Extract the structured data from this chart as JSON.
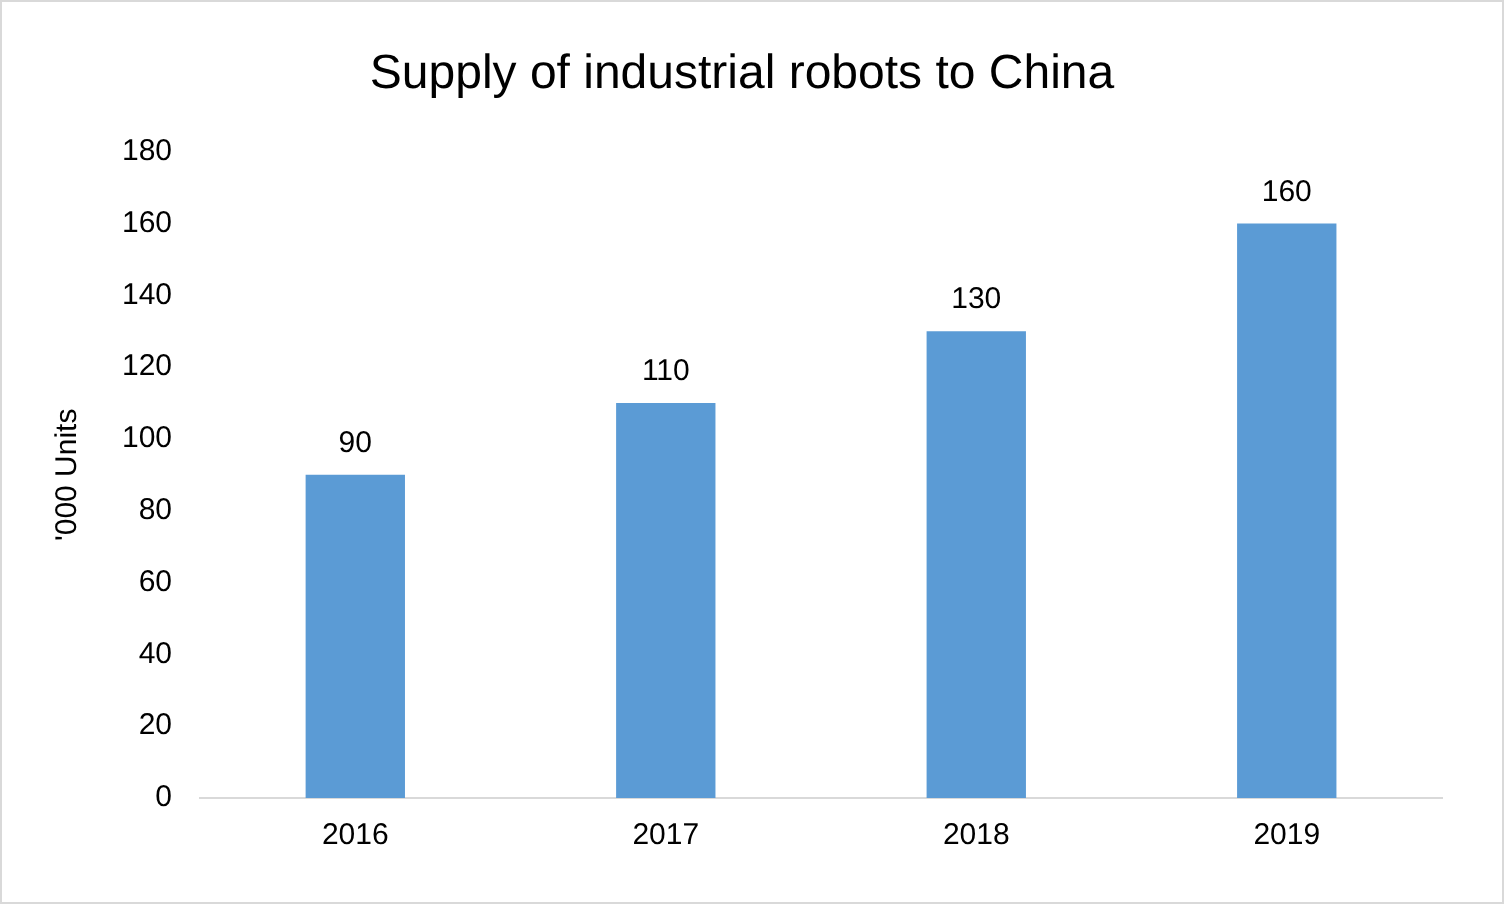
{
  "chart_data": {
    "type": "bar",
    "title": "Supply of industrial robots to China",
    "ylabel": "'000 Units",
    "categories": [
      "2016",
      "2017",
      "2018",
      "2019"
    ],
    "values": [
      90,
      110,
      130,
      160
    ],
    "color": "#5b9bd5",
    "ylim": [
      0,
      180
    ],
    "yticks": [
      0,
      20,
      40,
      60,
      80,
      100,
      120,
      140,
      160,
      180
    ],
    "grid": false,
    "data_labels": true,
    "legend": false
  }
}
